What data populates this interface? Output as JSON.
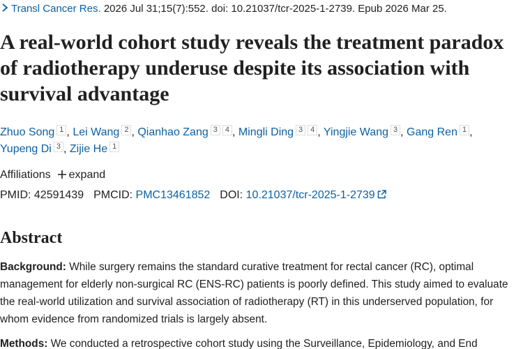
{
  "citation": {
    "journal": "Transl Cancer Res.",
    "details": "2026 Jul 31;15(7):552. doi: 10.21037/tcr-2025-1-2739. Epub 2026 Mar 25."
  },
  "title": "A real-world cohort study reveals the treatment paradox of radiotherapy underuse despite its association with survival advantage",
  "authors": {
    "separator": ",",
    "list": [
      {
        "name": "Zhuo Song",
        "affiliations": [
          1
        ]
      },
      {
        "name": "Lei Wang",
        "affiliations": [
          2
        ]
      },
      {
        "name": "Qianhao Zang",
        "affiliations": [
          3,
          4
        ]
      },
      {
        "name": "Mingli Ding",
        "affiliations": [
          3,
          4
        ]
      },
      {
        "name": "Yingjie Wang",
        "affiliations": [
          3
        ]
      },
      {
        "name": "Gang Ren",
        "affiliations": [
          1
        ]
      },
      {
        "name": "Yupeng Di",
        "affiliations": [
          3
        ]
      },
      {
        "name": "Zijie He",
        "affiliations": [
          1
        ]
      }
    ]
  },
  "affiliations": {
    "label": "Affiliations",
    "toggle": "expand"
  },
  "identifiers": [
    {
      "label": "PMID:",
      "value": "42591439"
    },
    {
      "label": "PMCID:",
      "value": "PMC13461852"
    },
    {
      "label": "DOI:",
      "value": "10.21037/tcr-2025-1-2739"
    }
  ],
  "abstract": {
    "heading": "Abstract",
    "sections": [
      {
        "label": "Background:",
        "text": "While surgery remains the standard curative treatment for rectal cancer (RC), optimal management for elderly non-surgical RC (ENS-RC) patients is poorly defined. This study aimed to evaluate the real-world utilization and survival association of radiotherapy (RT) in this underserved population, for whom evidence from randomized trials is largely absent."
      },
      {
        "label": "Methods:",
        "text": "We conducted a retrospective cohort study using the Surveillance, Epidemiology, and End"
      }
    ]
  }
}
